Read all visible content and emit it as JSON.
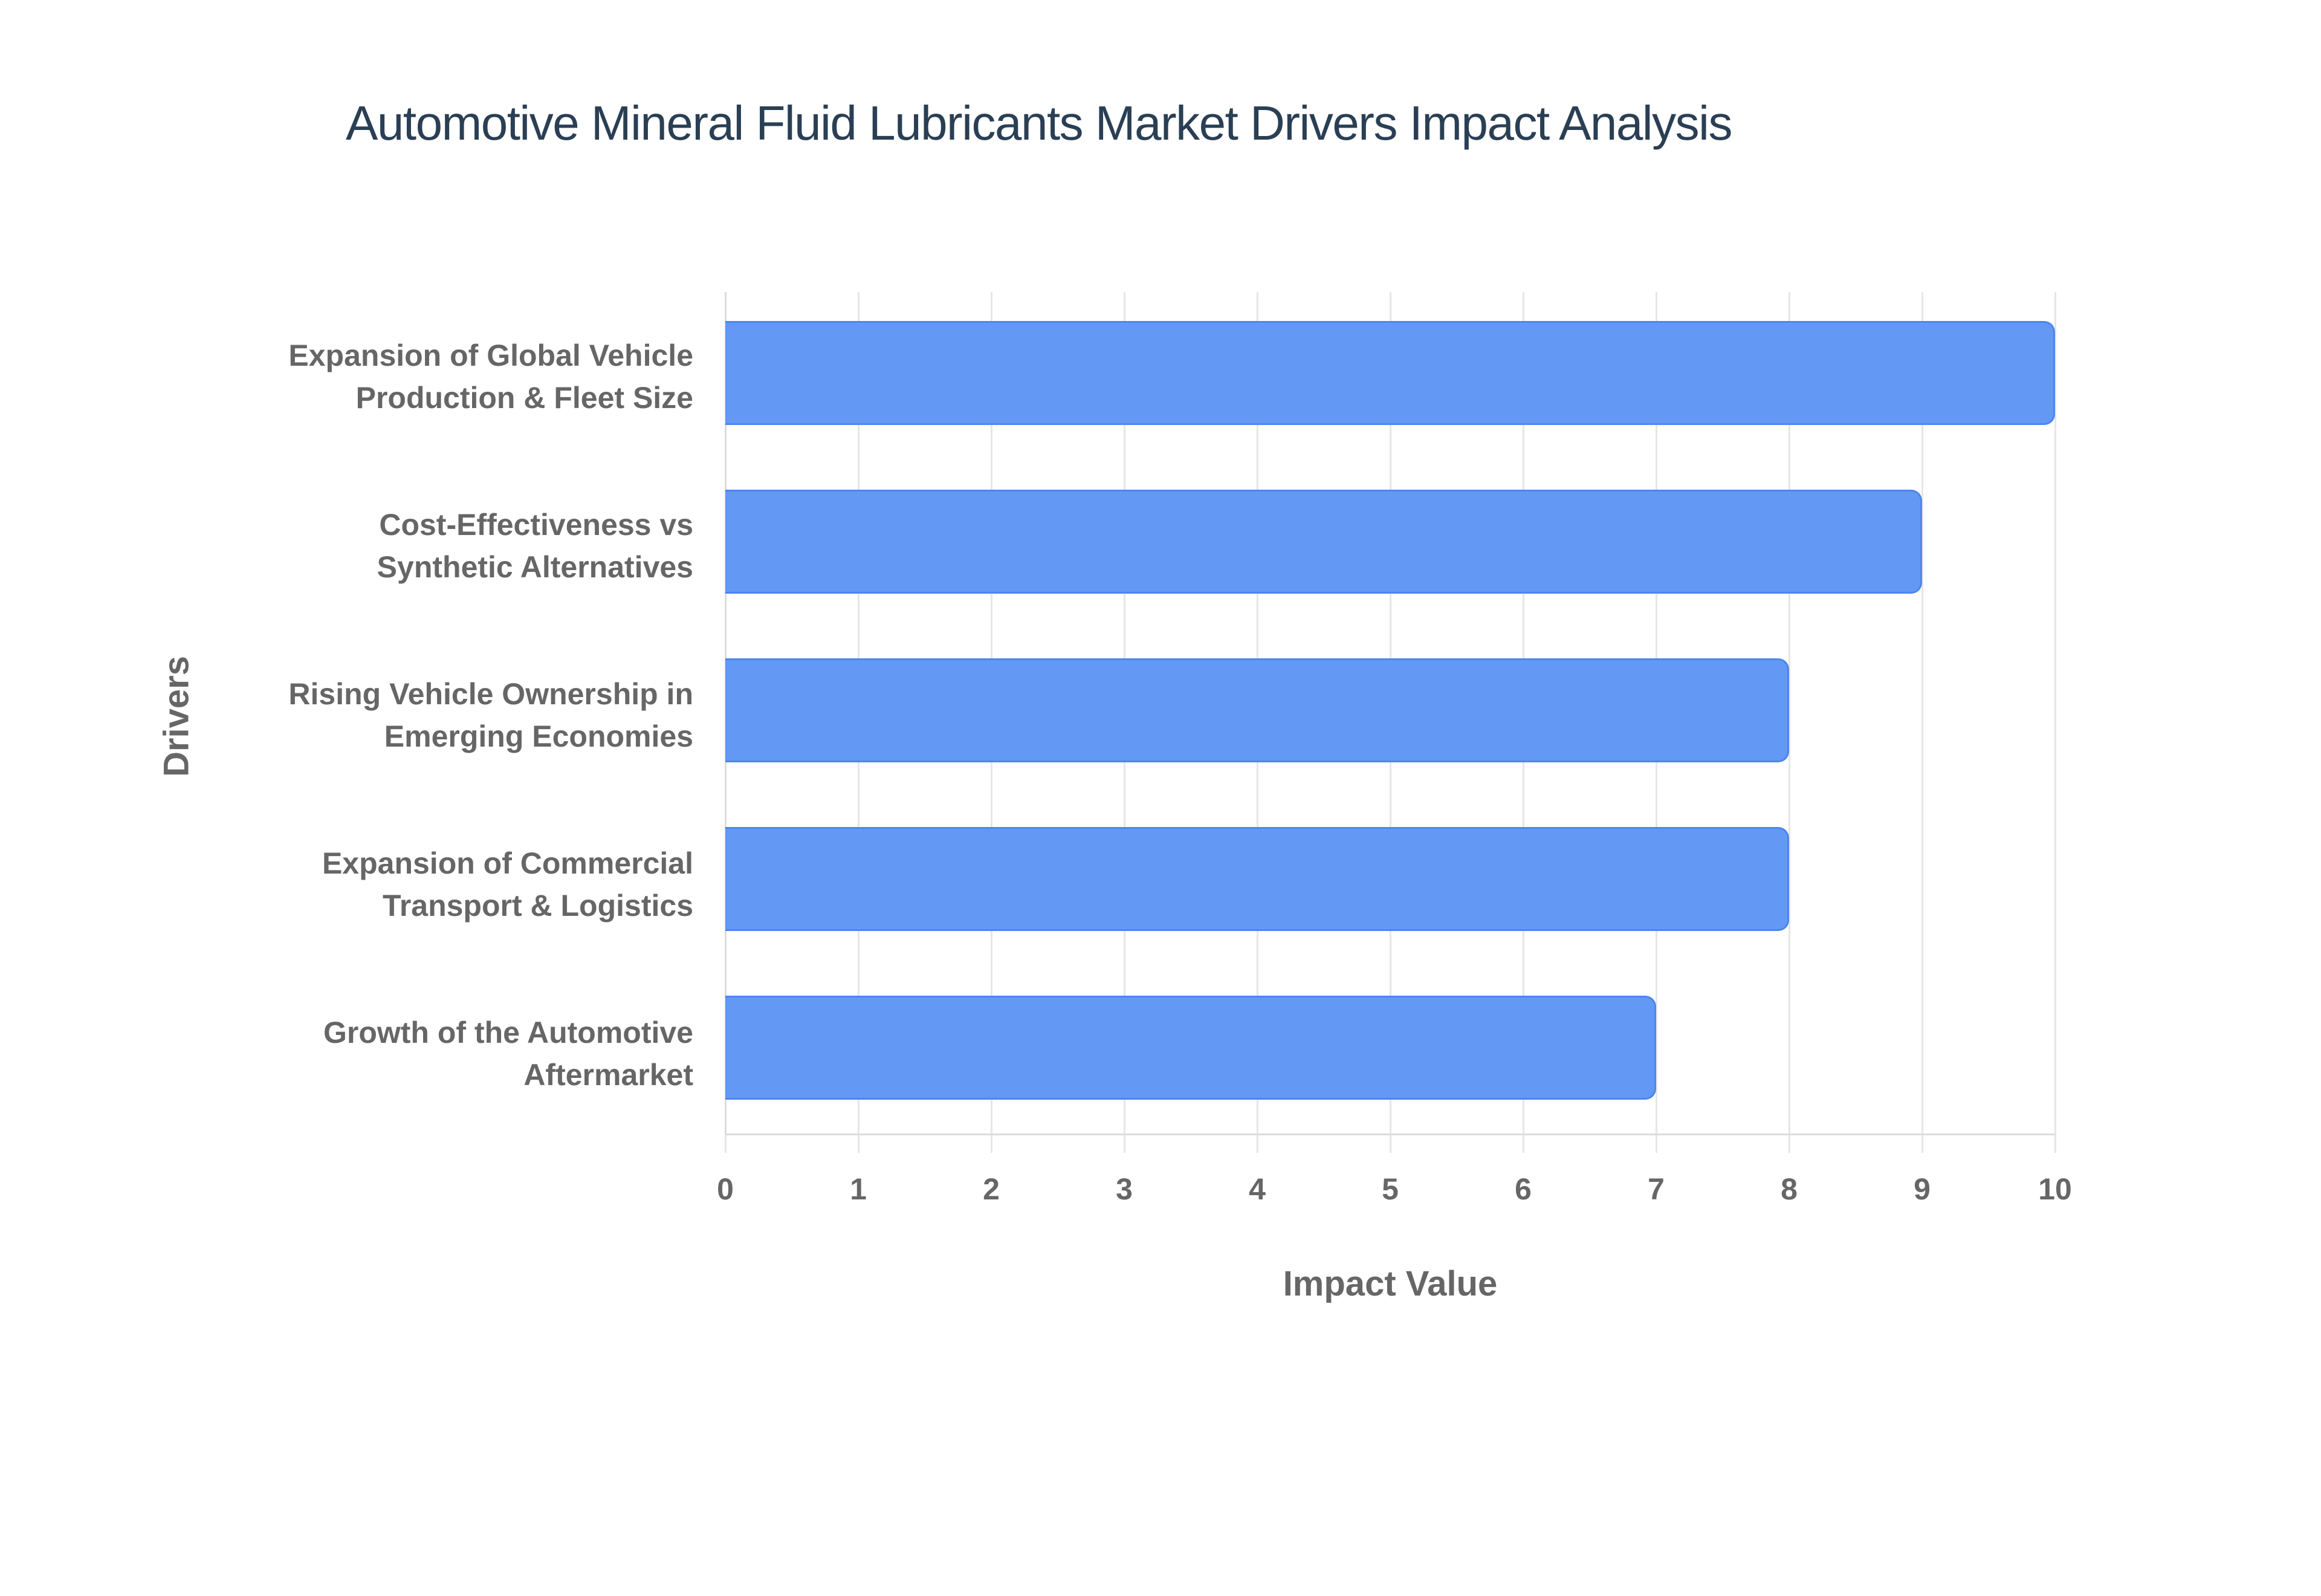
{
  "chart_data": {
    "type": "bar",
    "orientation": "horizontal",
    "title": "Automotive Mineral Fluid Lubricants Market Drivers Impact Analysis",
    "xlabel": "Impact Value",
    "ylabel": "Drivers",
    "categories": [
      "Expansion of Global Vehicle Production & Fleet Size",
      "Cost-Effectiveness vs Synthetic Alternatives",
      "Rising Vehicle Ownership in Emerging Economies",
      "Expansion of Commercial Transport & Logistics",
      "Growth of the Automotive Aftermarket"
    ],
    "category_lines": [
      [
        "Expansion of Global Vehicle",
        "Production & Fleet Size"
      ],
      [
        "Cost-Effectiveness vs",
        "Synthetic Alternatives"
      ],
      [
        "Rising Vehicle Ownership in",
        "Emerging Economies"
      ],
      [
        "Expansion of Commercial",
        "Transport & Logistics"
      ],
      [
        "Growth of the Automotive",
        "Aftermarket"
      ]
    ],
    "values": [
      10,
      9,
      8,
      8,
      7
    ],
    "xlim": [
      0,
      10
    ],
    "x_ticks": [
      "0",
      "1",
      "2",
      "3",
      "4",
      "5",
      "6",
      "7",
      "8",
      "9",
      "10"
    ],
    "grid": true,
    "legend": null,
    "bar_color": "#6399f4",
    "bar_border_color": "#4c86ee"
  }
}
